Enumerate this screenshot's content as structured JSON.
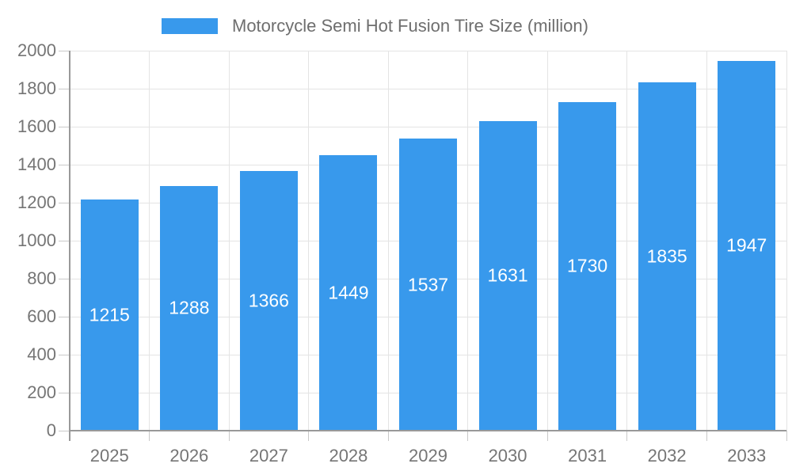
{
  "legend": {
    "label": "Motorcycle Semi Hot Fusion Tire Size (million)",
    "swatch_color": "#3899ec"
  },
  "chart_data": {
    "type": "bar",
    "title": "Motorcycle Semi Hot Fusion Tire Size (million)",
    "categories": [
      "2025",
      "2026",
      "2027",
      "2028",
      "2029",
      "2030",
      "2031",
      "2032",
      "2033"
    ],
    "values": [
      1215,
      1288,
      1366,
      1449,
      1537,
      1631,
      1730,
      1835,
      1947
    ],
    "series": [
      {
        "name": "Motorcycle Semi Hot Fusion Tire Size (million)",
        "values": [
          1215,
          1288,
          1366,
          1449,
          1537,
          1631,
          1730,
          1835,
          1947
        ]
      }
    ],
    "xlabel": "",
    "ylabel": "",
    "ylim": [
      0,
      2000
    ],
    "ytick_step": 200,
    "ytick_labels": [
      "0",
      "200",
      "400",
      "600",
      "800",
      "1000",
      "1200",
      "1400",
      "1600",
      "1800",
      "2000"
    ],
    "grid": true,
    "legend_position": "top-center",
    "bar_color": "#3899ec",
    "bar_value_label_color": "#ffffff",
    "axis_label_color": "#757575",
    "title_color": "#6e6e6e",
    "grid_color": "#e4e4e4",
    "axis_line_color": "#999999"
  }
}
